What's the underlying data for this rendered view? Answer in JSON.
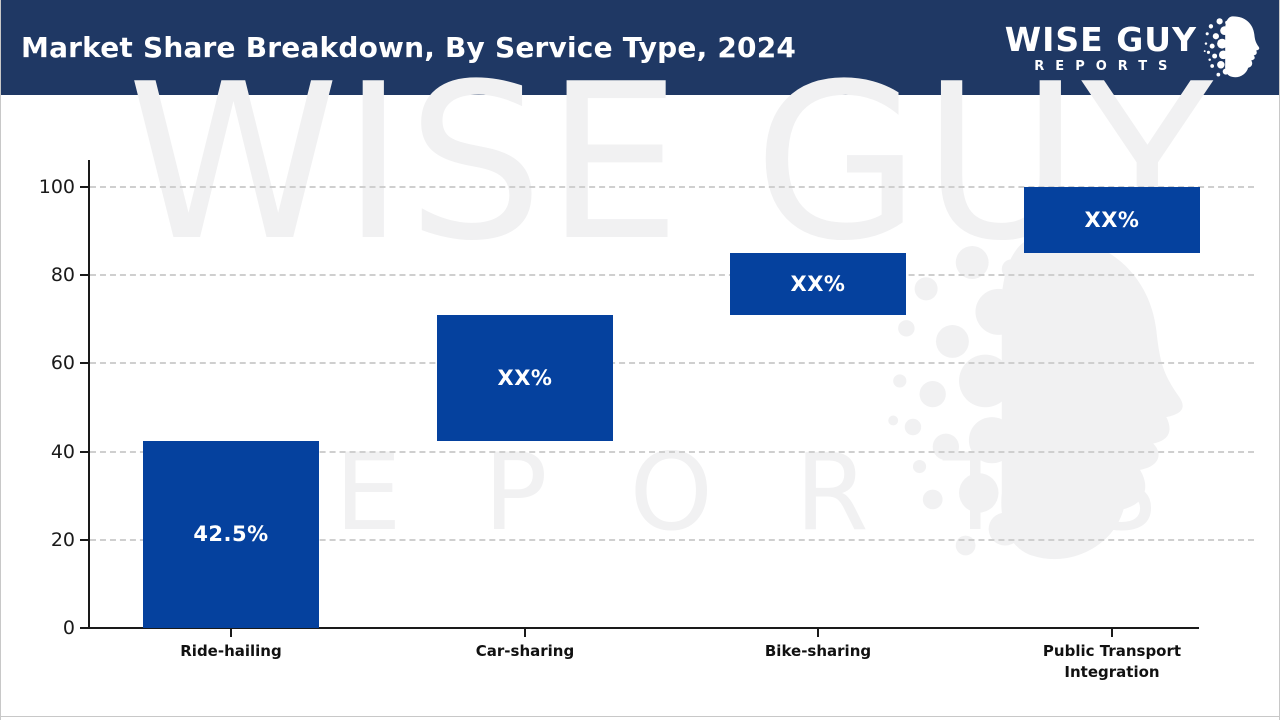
{
  "header": {
    "title": "Market Share Breakdown, By Service Type, 2024",
    "logo": {
      "line1": "WISE GUY",
      "line2": "REPORTS"
    }
  },
  "watermark": {
    "line1": "WISE GUY",
    "line2": "REPORTS"
  },
  "chart_data": {
    "type": "bar",
    "subtype": "floating cumulative segments (waterfall-style market share bars)",
    "title": "Market Share Breakdown, By Service Type, 2024",
    "categories": [
      "Ride-hailing",
      "Car-sharing",
      "Bike-sharing",
      "Public Transport Integration"
    ],
    "segments": [
      {
        "category": "Ride-hailing",
        "start": 0,
        "end": 42.5,
        "label": "42.5%"
      },
      {
        "category": "Car-sharing",
        "start": 42.5,
        "end": 71,
        "label": "XX%"
      },
      {
        "category": "Bike-sharing",
        "start": 71,
        "end": 85,
        "label": "XX%"
      },
      {
        "category": "Public Transport Integration",
        "start": 85,
        "end": 100,
        "label": "XX%"
      }
    ],
    "xlabel": "",
    "ylabel": "",
    "ylim": [
      0,
      107
    ],
    "yticks": [
      0,
      20,
      40,
      60,
      80,
      100
    ],
    "grid": "horizontal-dashed",
    "legend": "none"
  },
  "colors": {
    "header_bg": "#1f3864",
    "bar_fill": "#05419e",
    "bar_label": "#ffffff",
    "axis": "#1a1a1a",
    "gridline": "#cfcfcf",
    "watermark": "#f1f1f2",
    "page_border": "#c8c8c8"
  }
}
